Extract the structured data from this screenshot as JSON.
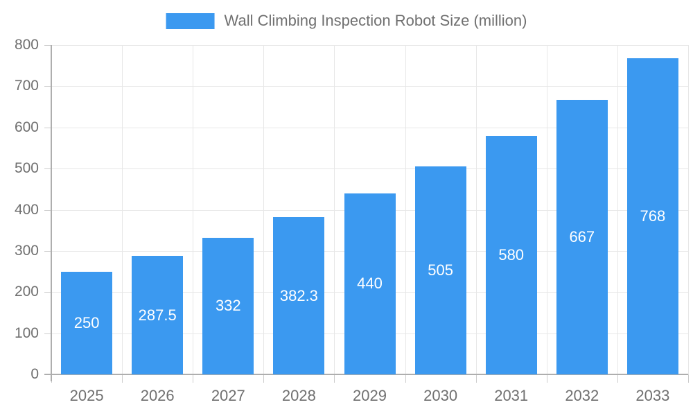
{
  "legend": {
    "label": "Wall Climbing Inspection Robot Size (million)"
  },
  "chart_data": {
    "type": "bar",
    "title": "Wall Climbing Inspection Robot Size (million)",
    "categories": [
      "2025",
      "2026",
      "2027",
      "2028",
      "2029",
      "2030",
      "2031",
      "2032",
      "2033"
    ],
    "values": [
      250,
      287.5,
      332,
      382.3,
      440,
      505,
      580,
      667,
      768
    ],
    "value_labels": [
      "250",
      "287.5",
      "332",
      "382.3",
      "440",
      "505",
      "580",
      "667",
      "768"
    ],
    "xlabel": "",
    "ylabel": "",
    "ylim": [
      0,
      800
    ],
    "yticks": [
      0,
      100,
      200,
      300,
      400,
      500,
      600,
      700,
      800
    ],
    "grid": true,
    "legend_position": "top",
    "colors": {
      "bar": "#3B99F0",
      "bar_value_label": "#ffffff",
      "axis_text": "#707070",
      "gridline": "#e7e7e7",
      "axis_line": "#aeaeae",
      "tick": "#cccccc"
    }
  }
}
